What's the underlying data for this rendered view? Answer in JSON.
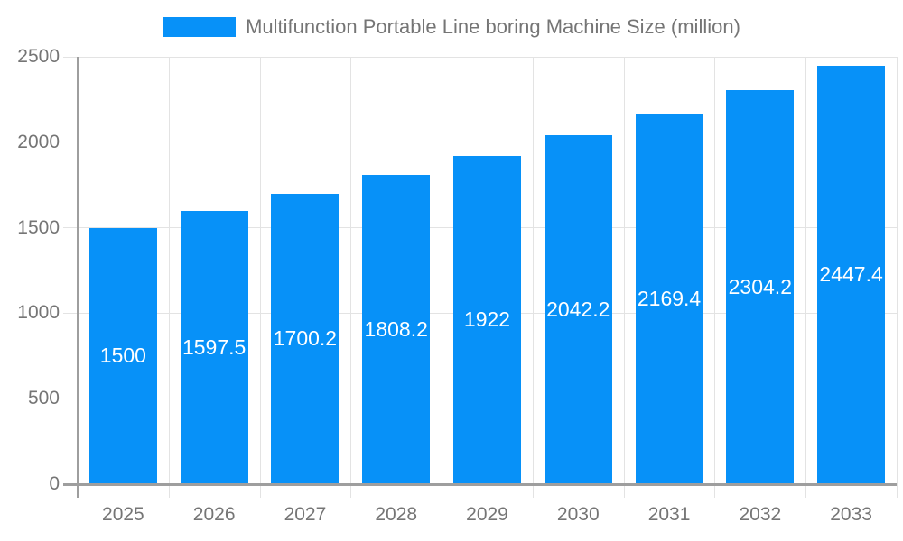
{
  "chart_data": {
    "type": "bar",
    "title": "Multifunction Portable Line boring Machine Size (million)",
    "categories": [
      "2025",
      "2026",
      "2027",
      "2028",
      "2029",
      "2030",
      "2031",
      "2032",
      "2033"
    ],
    "values": [
      1500,
      1597.5,
      1700.2,
      1808.2,
      1922,
      2042.2,
      2169.4,
      2304.2,
      2447.4
    ],
    "value_labels": [
      "1500",
      "1597.5",
      "1700.2",
      "1808.2",
      "1922",
      "2042.2",
      "2169.4",
      "2304.2",
      "2447.4"
    ],
    "xlabel": "",
    "ylabel": "",
    "ylim": [
      0,
      2500
    ],
    "yticks": [
      0,
      500,
      1000,
      1500,
      2000,
      2500
    ],
    "grid": true,
    "legend_position": "top",
    "value_labels_inside_bars": true,
    "colors": {
      "bar": "#0791F8",
      "title_text": "#757575",
      "axis_text": "#757575",
      "axis_line": "#9E9E9E",
      "gridline": "#E3E3E3",
      "value_label": "#FFFFFF",
      "background": "#FFFFFF"
    }
  }
}
